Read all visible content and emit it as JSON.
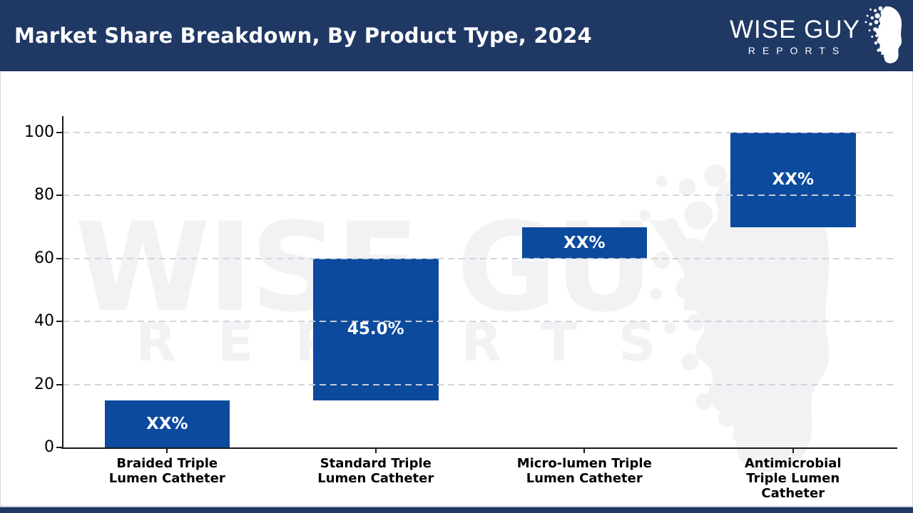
{
  "header": {
    "title": "Market Share Breakdown, By Product Type, 2024",
    "logo": {
      "line1": "WISE GUY",
      "line2": "REPORTS"
    }
  },
  "watermark": {
    "line1": "WISE GUY",
    "line2": "REPORTS"
  },
  "colors": {
    "header_bg": "#1f3864",
    "footer_bg": "#1f3864",
    "bar": "#0c4a9e",
    "bar_label_text": "#ffffff",
    "axis": "#1a1a1a",
    "grid": "#d0d2d8",
    "watermark": "#f2f2f5"
  },
  "chart_data": {
    "type": "bar",
    "subtype": "waterfall",
    "title": "Market Share Breakdown, By Product Type, 2024",
    "xlabel": "",
    "ylabel": "",
    "ylim": [
      0,
      105
    ],
    "yticks": [
      0,
      20,
      40,
      60,
      80,
      100
    ],
    "grid": "dashed-horizontal-over-bars",
    "legend": "none",
    "categories": [
      "Braided Triple Lumen Catheter",
      "Standard Triple Lumen Catheter",
      "Micro-lumen Triple Lumen Catheter",
      "Antimicrobial Triple Lumen Catheter"
    ],
    "category_lines": [
      [
        "Braided Triple",
        "Lumen Catheter"
      ],
      [
        "Standard Triple",
        "Lumen Catheter"
      ],
      [
        "Micro-lumen Triple",
        "Lumen Catheter"
      ],
      [
        "Antimicrobial",
        "Triple Lumen",
        "Catheter"
      ]
    ],
    "bars": [
      {
        "base": 0,
        "top": 15,
        "value": 15,
        "label": "XX%"
      },
      {
        "base": 15,
        "top": 60,
        "value": 45,
        "label": "45.0%"
      },
      {
        "base": 60,
        "top": 70,
        "value": 10,
        "label": "XX%"
      },
      {
        "base": 70,
        "top": 100,
        "value": 30,
        "label": "XX%"
      }
    ]
  }
}
